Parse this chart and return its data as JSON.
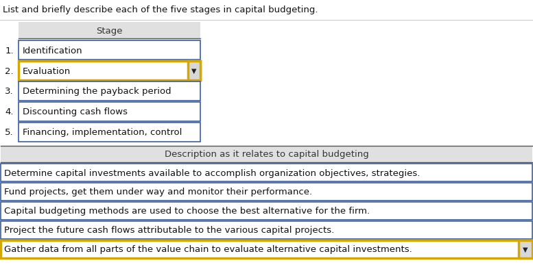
{
  "question": "List and briefly describe each of the five stages in capital budgeting.",
  "stage_header": "Stage",
  "desc_header": "Description as it relates to capital budgeting",
  "stages": [
    "Identification",
    "Evaluation",
    "Determining the payback period",
    "Discounting cash flows",
    "Financing, implementation, control"
  ],
  "descriptions": [
    "Determine capital investments available to accomplish organization objectives, strategies.",
    "Fund projects, get them under way and monitor their performance.",
    "Capital budgeting methods are used to choose the best alternative for the firm.",
    "Project the future cash flows attributable to the various capital projects.",
    "Gather data from all parts of the value chain to evaluate alternative capital investments."
  ],
  "highlight_stage_idx": 1,
  "highlight_desc_idx": 4,
  "bg_color": "#ffffff",
  "header_bg": "#e0e0e0",
  "box_border_normal": "#3a5fa0",
  "box_border_highlight": "#d4a800",
  "box_fill": "#ffffff",
  "question_fontsize": 9.5,
  "header_fontsize": 9.5,
  "cell_fontsize": 9.5
}
